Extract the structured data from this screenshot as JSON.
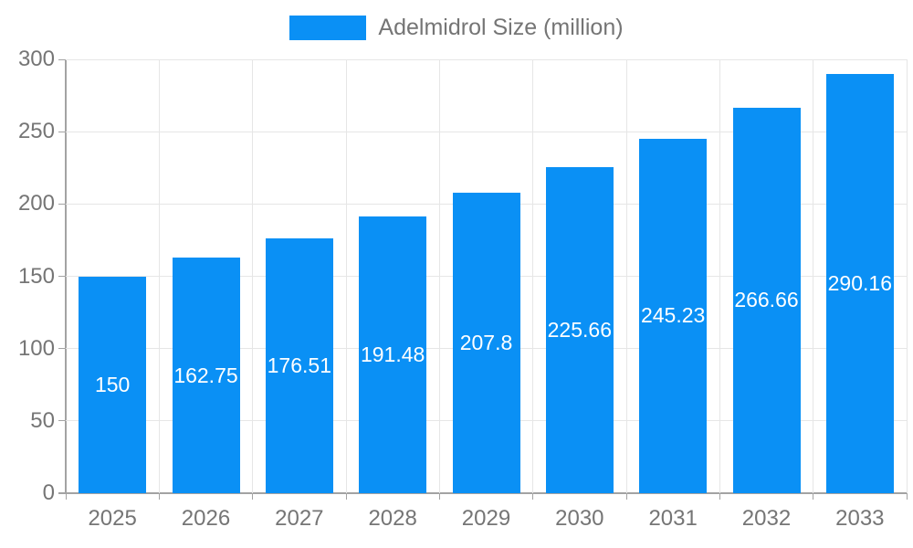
{
  "chart_data": {
    "type": "bar",
    "title": "",
    "legend": {
      "label": "Adelmidrol Size (million)",
      "position": "top-center"
    },
    "categories": [
      "2025",
      "2026",
      "2027",
      "2028",
      "2029",
      "2030",
      "2031",
      "2032",
      "2033"
    ],
    "series": [
      {
        "name": "Adelmidrol Size (million)",
        "values": [
          150,
          162.75,
          176.51,
          191.48,
          207.8,
          225.66,
          245.23,
          266.66,
          290.16
        ],
        "value_labels": [
          "150",
          "162.75",
          "176.51",
          "191.48",
          "207.8",
          "225.66",
          "245.23",
          "266.66",
          "290.16"
        ]
      }
    ],
    "xlabel": "",
    "ylabel": "",
    "ylim": [
      0,
      300
    ],
    "yticks": [
      0,
      50,
      100,
      150,
      200,
      250,
      300
    ],
    "grid": true,
    "colors": {
      "bar": "#0a90f5",
      "bar_value_label": "#ffffff",
      "axis_line": "#a3a3a3",
      "gridline": "#e6e6e6",
      "tick_text": "#757575",
      "legend_text": "#757575",
      "background": "#ffffff"
    }
  }
}
